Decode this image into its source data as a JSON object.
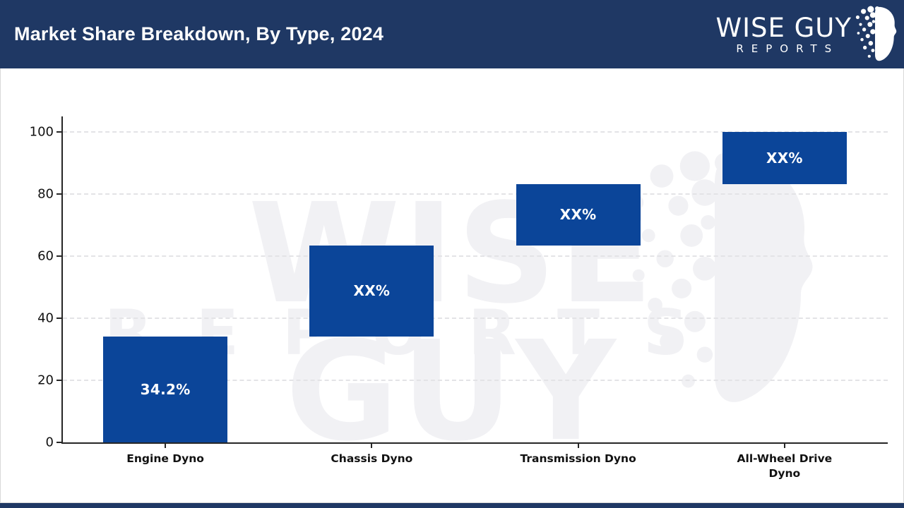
{
  "header": {
    "title": "Market Share Breakdown, By Type, 2024",
    "logo": {
      "line1": "WISE GUY",
      "line2": "REPORTS"
    }
  },
  "watermark": {
    "line1": "WISE GUY",
    "line2": "REPORTS"
  },
  "colors": {
    "header_bg": "#1f3864",
    "bar": "#0b4599",
    "grid": "#e3e3e6",
    "axis": "#262626",
    "bar_label_text": "#ffffff",
    "watermark": "#f1f1f4"
  },
  "chart_data": {
    "type": "bar",
    "subtype": "waterfall",
    "title": "Market Share Breakdown, By Type, 2024",
    "categories": [
      "Engine Dyno",
      "Chassis Dyno",
      "Transmission Dyno",
      "All-Wheel Drive Dyno"
    ],
    "bars": [
      {
        "category": "Engine Dyno",
        "start": 0,
        "end": 34.2,
        "label": "34.2%"
      },
      {
        "category": "Chassis Dyno",
        "start": 34.2,
        "end": 63.5,
        "label": "XX%"
      },
      {
        "category": "Transmission Dyno",
        "start": 63.5,
        "end": 83.2,
        "label": "XX%"
      },
      {
        "category": "All-Wheel Drive Dyno",
        "start": 83.2,
        "end": 100,
        "label": "XX%"
      }
    ],
    "ylim": [
      0,
      100
    ],
    "yticks": [
      0,
      20,
      40,
      60,
      80,
      100
    ],
    "xlabel": "",
    "ylabel": "",
    "grid": "horizontal-dashed",
    "legend": null,
    "bar_color": "#0b4599"
  }
}
